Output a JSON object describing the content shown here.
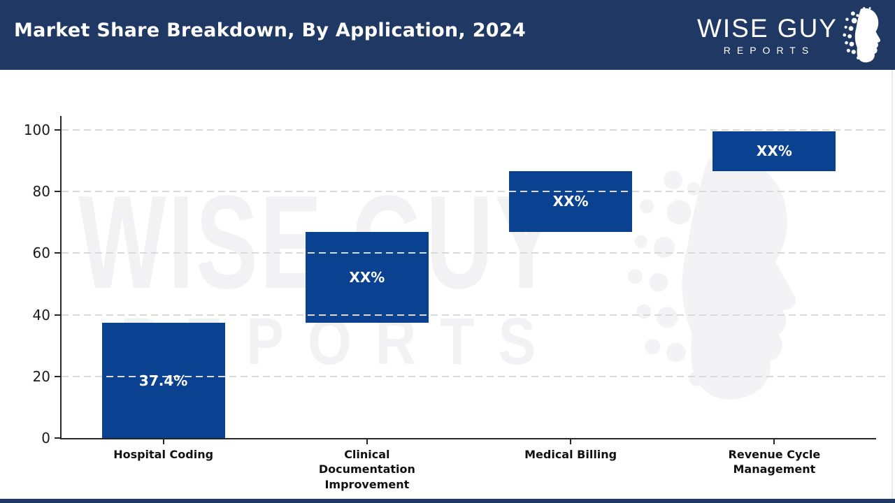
{
  "header": {
    "title": "Market Share Breakdown, By Application, 2024",
    "logo": {
      "name": "WISE GUY",
      "subtitle": "REPORTS"
    }
  },
  "watermark": {
    "name": "WISE GUY",
    "subtitle": "REPORTS"
  },
  "theme": {
    "header_bg": "#203864",
    "footer_bg": "#203864",
    "title_color": "#ffffff",
    "chart_bg": "#ffffff"
  },
  "chart_data": {
    "type": "bar",
    "variant": "waterfall",
    "title": "Market Share Breakdown, By Application, 2024",
    "categories": [
      "Hospital Coding",
      "Clinical Documentation Improvement",
      "Medical Billing",
      "Revenue Cycle Management"
    ],
    "bars": [
      {
        "category": "Hospital Coding",
        "label": "37.4%",
        "start": 0,
        "end": 37.4
      },
      {
        "category": "Clinical Documentation Improvement",
        "label": "XX%",
        "start": 37.4,
        "end": 66.9
      },
      {
        "category": "Medical Billing",
        "label": "XX%",
        "start": 66.9,
        "end": 86.7
      },
      {
        "category": "Revenue Cycle Management",
        "label": "XX%",
        "start": 86.7,
        "end": 99.5
      }
    ],
    "yticks": [
      0,
      20,
      40,
      60,
      80,
      100
    ],
    "ylim": [
      0,
      104
    ],
    "grid": {
      "axis": "y",
      "style": "dashed",
      "color": "#d9d9d9"
    },
    "colors": {
      "bar": "#0a4191",
      "axis": "#262626",
      "tick_label": "#1a1a1a",
      "value_label": "#ffffff",
      "category_label": "#111111"
    }
  }
}
